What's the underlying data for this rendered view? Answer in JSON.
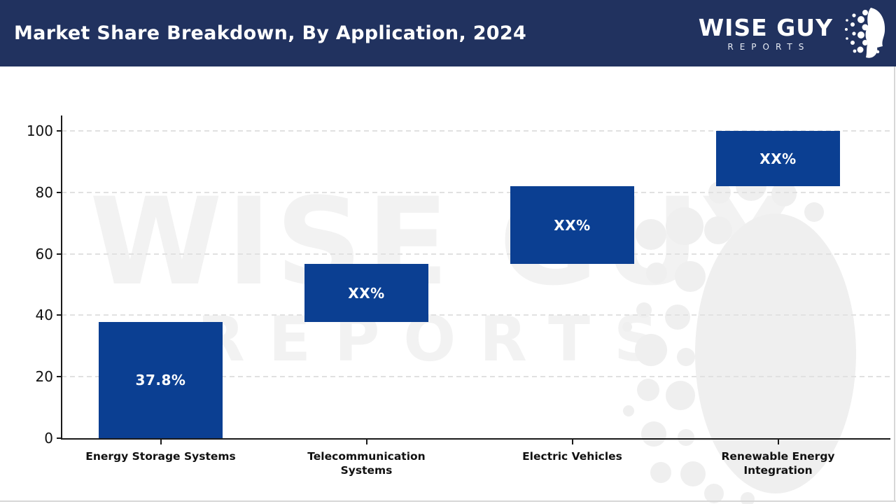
{
  "header": {
    "title": "Market Share Breakdown, By Application, 2024",
    "logo": {
      "primary": "WISE GUY",
      "secondary": "REPORTS"
    }
  },
  "watermark": {
    "primary": "WISE GUY",
    "secondary": "REPORTS"
  },
  "colors": {
    "header_bg": "#21325f",
    "bar": "#0b3f92",
    "grid": "#e1e1e1",
    "axis": "#1a1a1a",
    "bar_label": "#ffffff",
    "watermark": "#f2f2f2"
  },
  "chart_data": {
    "type": "bar",
    "subtype": "waterfall",
    "title": "Market Share Breakdown, By Application, 2024",
    "xlabel": "",
    "ylabel": "",
    "categories": [
      "Energy Storage Systems",
      "Telecommunication Systems",
      "Electric Vehicles",
      "Renewable Energy Integration"
    ],
    "segments": [
      {
        "category": "Energy Storage Systems",
        "start": 0,
        "end": 37.8,
        "value_label": "37.8%"
      },
      {
        "category": "Telecommunication Systems",
        "start": 37.8,
        "end": 56.7,
        "value_label": "XX%"
      },
      {
        "category": "Electric Vehicles",
        "start": 56.7,
        "end": 82.0,
        "value_label": "XX%"
      },
      {
        "category": "Renewable Energy Integration",
        "start": 82.0,
        "end": 100.0,
        "value_label": "XX%"
      }
    ],
    "yticks": [
      0,
      20,
      40,
      60,
      80,
      100
    ],
    "ylim": [
      0,
      105
    ],
    "grid": "dashed-horizontal",
    "legend": "none",
    "bar_color": "#0b3f92"
  }
}
